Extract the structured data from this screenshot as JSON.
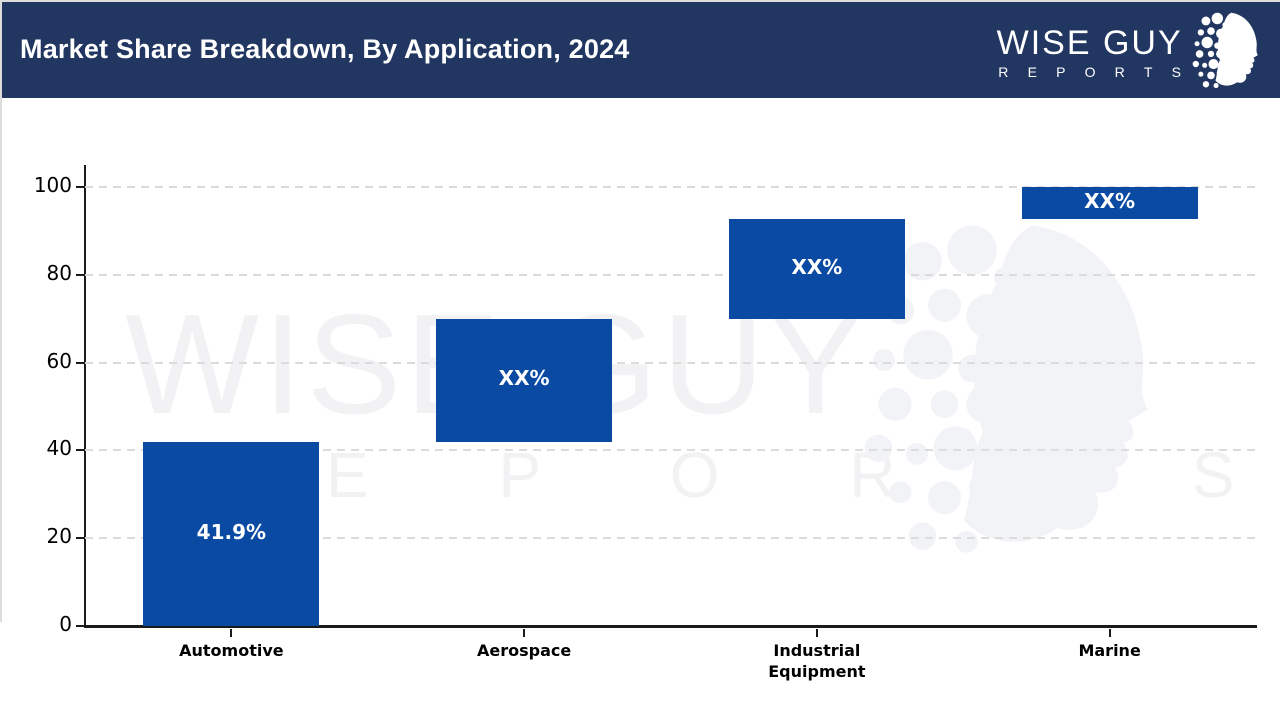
{
  "header": {
    "title": "Market Share Breakdown, By Application, 2024",
    "logo": {
      "line1": "WISE GUY",
      "line2": "REPORTS"
    }
  },
  "watermark": {
    "line1": "WISE GUY",
    "line2": "REPORTS"
  },
  "colors": {
    "header_bg": "#213660",
    "bar": "#0b4aa3",
    "grid": "#dcdcdc",
    "axis": "#1a1a1a",
    "watermark": "#f2f2f4"
  },
  "chart_data": {
    "type": "bar",
    "subtype": "waterfall",
    "title": "Market Share Breakdown, By Application, 2024",
    "categories": [
      "Automotive",
      "Aerospace",
      "Industrial\nEquipment",
      "Marine"
    ],
    "segments": [
      {
        "category": "Automotive",
        "start": 0,
        "end": 41.9,
        "label": "41.9%"
      },
      {
        "category": "Aerospace",
        "start": 41.9,
        "end": 70.0,
        "label": "XX%"
      },
      {
        "category": "Industrial Equipment",
        "start": 70.0,
        "end": 92.7,
        "label": "XX%"
      },
      {
        "category": "Marine",
        "start": 92.7,
        "end": 100.0,
        "label": "XX%"
      }
    ],
    "yticks": [
      0,
      20,
      40,
      60,
      80,
      100
    ],
    "ylim": [
      0,
      100
    ],
    "grid": "horizontal-dashed",
    "legend": "none",
    "bar_color": "#0b4aa3",
    "value_label_color": "#ffffff"
  }
}
